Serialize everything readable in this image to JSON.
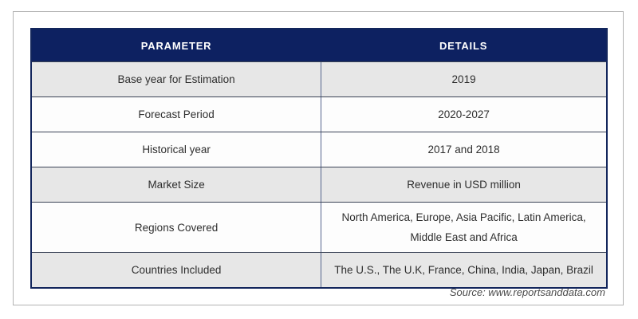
{
  "table": {
    "headers": {
      "parameter": "PARAMETER",
      "details": "DETAILS"
    },
    "rows": [
      {
        "parameter": "Base year for Estimation",
        "details": "2019"
      },
      {
        "parameter": "Forecast Period",
        "details": "2020-2027"
      },
      {
        "parameter": "Historical year",
        "details": "2017 and 2018"
      },
      {
        "parameter": "Market Size",
        "details": "Revenue in USD million"
      },
      {
        "parameter": "Regions Covered",
        "details": "North America, Europe, Asia Pacific, Latin America, Middle East and Africa"
      },
      {
        "parameter": "Countries Included",
        "details": "The U.S., The  U.K, France, China, India, Japan, Brazil"
      }
    ]
  },
  "source": "Source: www.reportsanddata.com",
  "colors": {
    "header_background": "#0d2161",
    "shaded_row_background": "#e7e7e7",
    "table_border": "#13265c",
    "column_divider": "#55658e",
    "card_border": "#b3b3b3",
    "body_text": "#2e2e2e",
    "source_text": "#4c4c4c"
  }
}
